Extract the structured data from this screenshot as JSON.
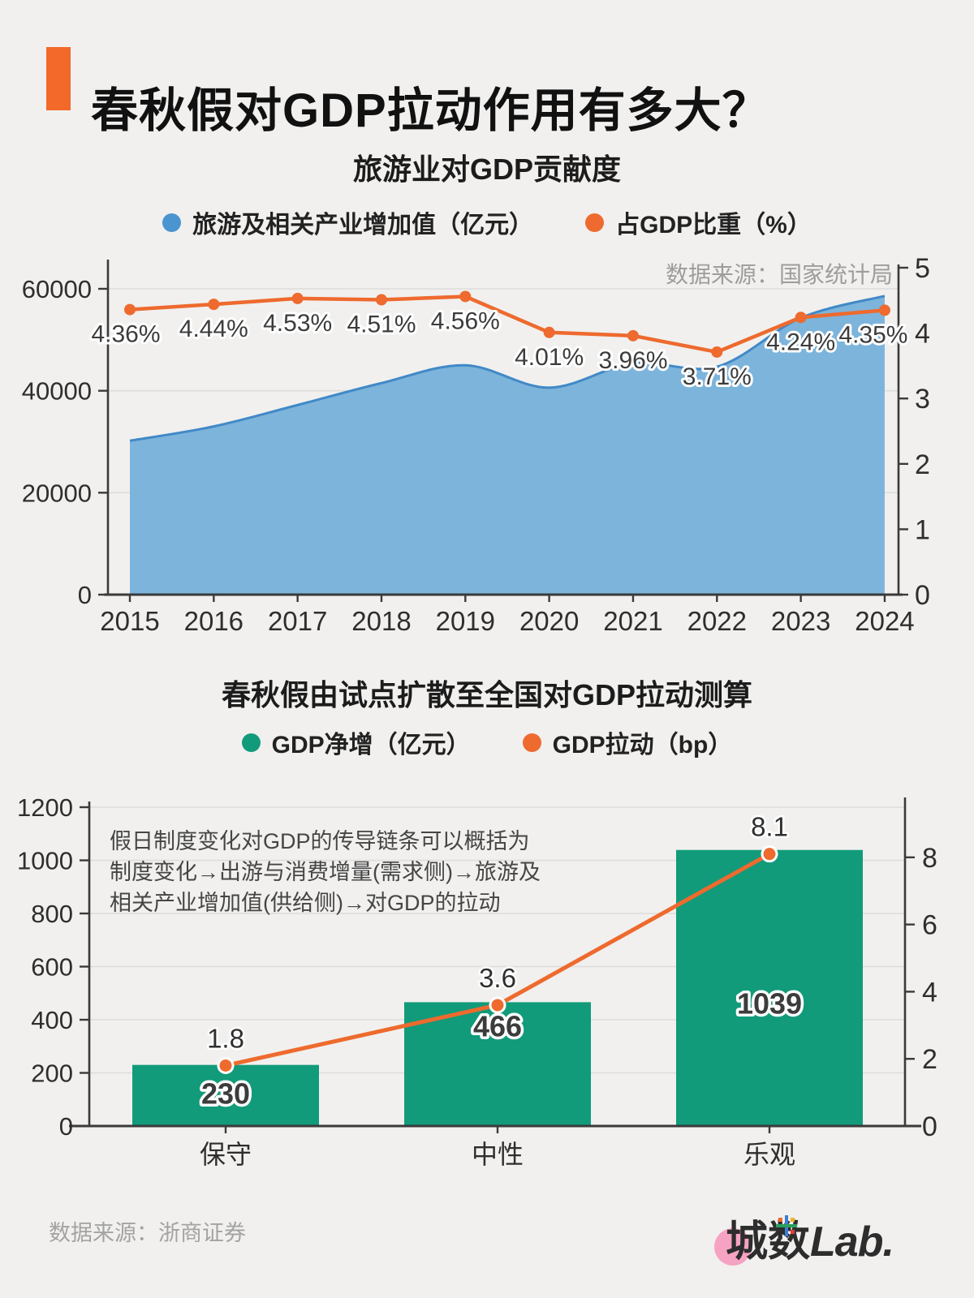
{
  "page": {
    "background": "#f1f0ee"
  },
  "header": {
    "title": "春秋假对GDP拉动作用有多大？",
    "accent_color": "#f2692a"
  },
  "chart_data": [
    {
      "type": "area",
      "title": "旅游业对GDP贡献度",
      "source_note": "数据来源：国家统计局",
      "legend_position": "top",
      "grid": true,
      "categories": [
        "2015",
        "2016",
        "2017",
        "2018",
        "2019",
        "2020",
        "2021",
        "2022",
        "2023",
        "2024"
      ],
      "series": [
        {
          "name": "旅游及相关产业增加值（亿元）",
          "type": "area",
          "axis": "left",
          "color": "#4a94d0",
          "fill": "#7db4db",
          "stroke": "#4189c7",
          "values": [
            30200,
            33000,
            37200,
            41500,
            45000,
            40600,
            45400,
            44700,
            54300,
            58600
          ]
        },
        {
          "name": "占GDP比重（%）",
          "type": "line",
          "axis": "right",
          "color": "#ee6a2e",
          "values": [
            4.36,
            4.44,
            4.53,
            4.51,
            4.56,
            4.01,
            3.96,
            3.71,
            4.24,
            4.35
          ],
          "labels": [
            "4.36%",
            "4.44%",
            "4.53%",
            "4.51%",
            "4.56%",
            "4.01%",
            "3.96%",
            "3.71%",
            "4.24%",
            "4.35%"
          ]
        }
      ],
      "left_axis": {
        "label": "亿元",
        "ticks": [
          0,
          20000,
          40000,
          60000
        ],
        "range": [
          0,
          66000
        ]
      },
      "right_axis": {
        "label": "%",
        "ticks": [
          0,
          1,
          2,
          3,
          4,
          5
        ],
        "range": [
          0,
          5
        ]
      }
    },
    {
      "type": "bar",
      "title": "春秋假由试点扩散至全国对GDP拉动测算",
      "legend_position": "top",
      "grid": true,
      "categories": [
        "保守",
        "中性",
        "乐观"
      ],
      "annotation_lines": [
        "假日制度变化对GDP的传导链条可以概括为",
        "制度变化→出游与消费增量(需求侧)→旅游及",
        "相关产业增加值(供给侧)→对GDP的拉动"
      ],
      "series": [
        {
          "name": "GDP净增（亿元）",
          "type": "bar",
          "axis": "left",
          "color": "#119b7a",
          "values": [
            230,
            466,
            1039
          ],
          "labels": [
            "230",
            "466",
            "1039"
          ]
        },
        {
          "name": "GDP拉动（bp）",
          "type": "line",
          "axis": "right",
          "color": "#ee6a2e",
          "values": [
            1.8,
            3.6,
            8.1
          ],
          "labels": [
            "1.8",
            "3.6",
            "8.1"
          ]
        }
      ],
      "left_axis": {
        "label": "亿元",
        "ticks": [
          0,
          200,
          400,
          600,
          800,
          1000,
          1200
        ],
        "range": [
          0,
          1290
        ]
      },
      "right_axis": {
        "label": "bp",
        "ticks": [
          0,
          2,
          4,
          6,
          8
        ],
        "range": [
          0,
          9.6
        ]
      }
    }
  ],
  "footer": {
    "source": "数据来源：浙商证券",
    "logo": {
      "cn": "城数",
      "en": "Lab.",
      "circle_color": "#f6a3c3"
    }
  }
}
